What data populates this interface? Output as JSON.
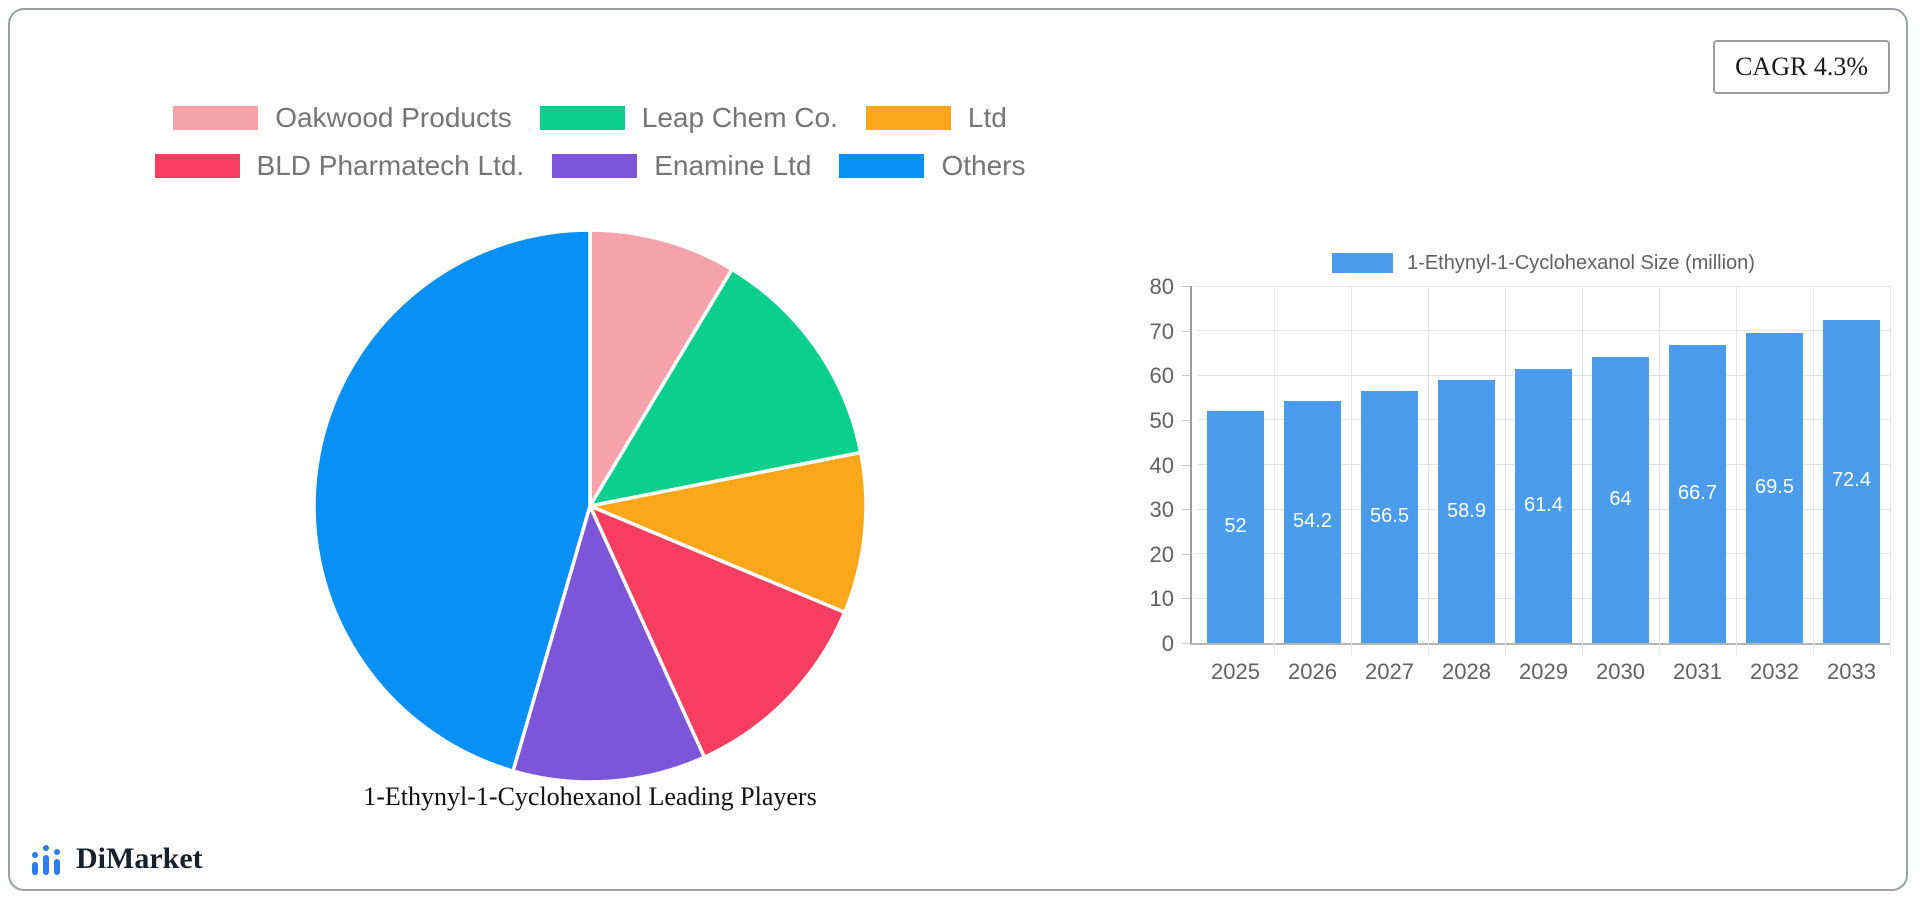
{
  "cagr_badge": "CAGR 4.3%",
  "brand": {
    "name": "DiMarket"
  },
  "chart_data": [
    {
      "type": "pie",
      "title": "1-Ethynyl-1-Cyclohexanol Leading Players",
      "labels": [
        "Oakwood Products",
        "Leap Chem Co.",
        "Ltd",
        "BLD Pharmatech Ltd.",
        "Enamine Ltd",
        "Others"
      ],
      "values": [
        8.6,
        13.3,
        9.4,
        11.9,
        11.3,
        45.5
      ],
      "colors": [
        "#f5a3a8",
        "#0bd08d",
        "#faa71b",
        "#f73d60",
        "#7d55d8",
        "#0990f5"
      ],
      "legend_rows": [
        [
          0,
          1,
          2
        ],
        [
          3,
          4,
          5
        ]
      ],
      "legend_position": "top",
      "units": "percent"
    },
    {
      "type": "bar",
      "legend": "1-Ethynyl-1-Cyclohexanol Size (million)",
      "categories": [
        "2025",
        "2026",
        "2027",
        "2028",
        "2029",
        "2030",
        "2031",
        "2032",
        "2033"
      ],
      "values": [
        52,
        54.2,
        56.5,
        58.9,
        61.4,
        64,
        66.7,
        69.5,
        72.4
      ],
      "bar_color": "#4b9cea",
      "value_label_color": "#ffffff",
      "ylim": [
        0,
        80
      ],
      "ytick_step": 10,
      "grid": true,
      "legend_position": "top"
    }
  ]
}
